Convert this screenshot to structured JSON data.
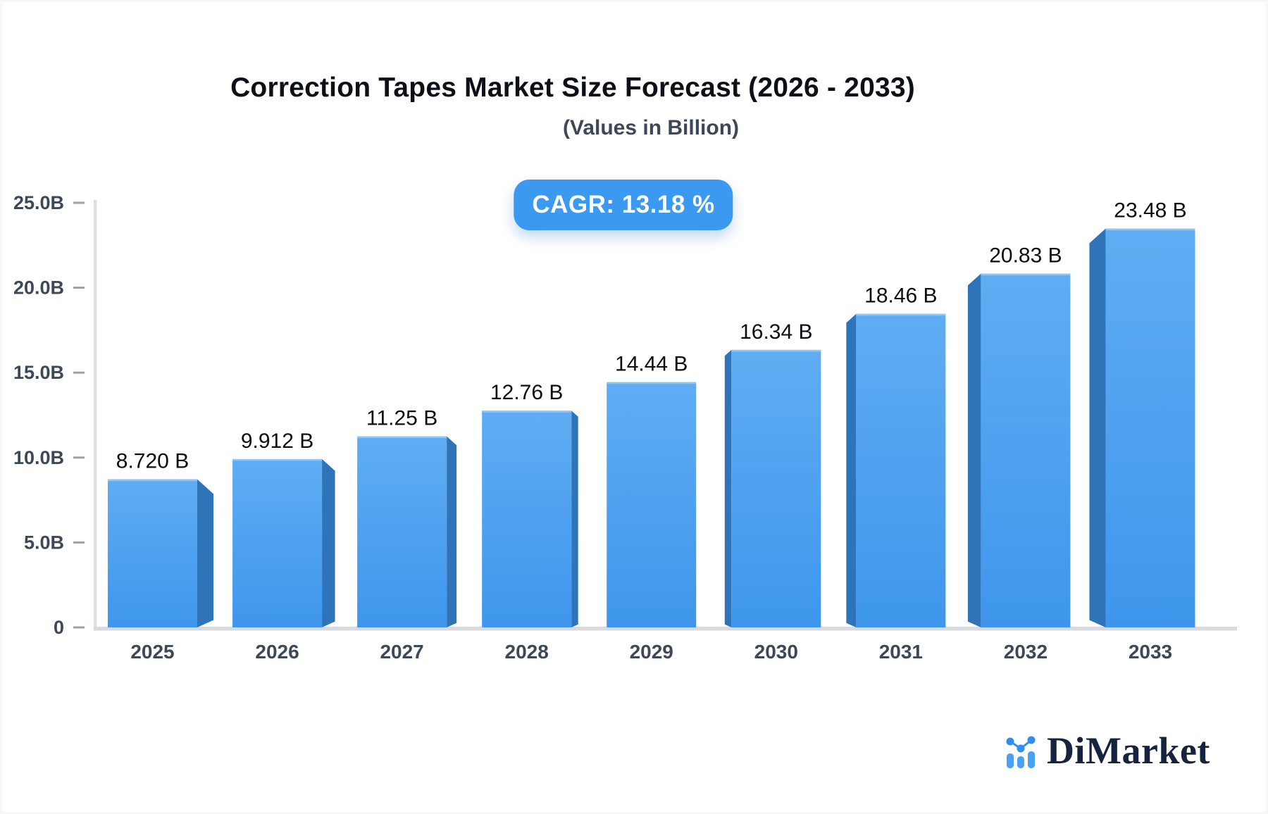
{
  "header": {
    "title": "Correction Tapes Market Size Forecast (2026 - 2033)",
    "subtitle": "(Values in Billion)"
  },
  "badge": {
    "label": "CAGR: 13.18 %"
  },
  "chart_data": {
    "type": "bar",
    "title": "Correction Tapes Market Size Forecast (2026 - 2033)",
    "subtitle": "(Values in Billion)",
    "categories": [
      "2025",
      "2026",
      "2027",
      "2028",
      "2029",
      "2030",
      "2031",
      "2032",
      "2033"
    ],
    "values": [
      8.72,
      9.912,
      11.25,
      12.76,
      14.44,
      16.34,
      18.46,
      20.83,
      23.48
    ],
    "value_labels": [
      "8.720 B",
      "9.912 B",
      "11.25 B",
      "12.76 B",
      "14.44 B",
      "16.34 B",
      "18.46 B",
      "20.83 B",
      "23.48 B"
    ],
    "unit": "Billion",
    "cagr_label": "CAGR: 13.18 %",
    "xlabel": "",
    "ylabel": "",
    "ylim": [
      0,
      25
    ],
    "y_ticks": [
      {
        "value": 0,
        "label": "0"
      },
      {
        "value": 5,
        "label": "5.0B"
      },
      {
        "value": 10,
        "label": "10.0B"
      },
      {
        "value": 15,
        "label": "15.0B"
      },
      {
        "value": 20,
        "label": "20.0B"
      },
      {
        "value": 25,
        "label": "25.0B"
      }
    ],
    "grid": false,
    "legend": "none",
    "colors": {
      "bar_top": "#5fadf3",
      "bar_bottom": "#3e96ec",
      "bar_side": "#2f74b9",
      "bar_top_edge": "#8ec6f5",
      "badge_bg": "#3b9af0",
      "axis_line": "#dee0e4",
      "baseline": "#d8dadd",
      "tick": "#9aa2ac",
      "value_text": "#0b0d10",
      "axis_text": "#3e4756"
    }
  },
  "logo": {
    "brand": "DiMarket"
  }
}
